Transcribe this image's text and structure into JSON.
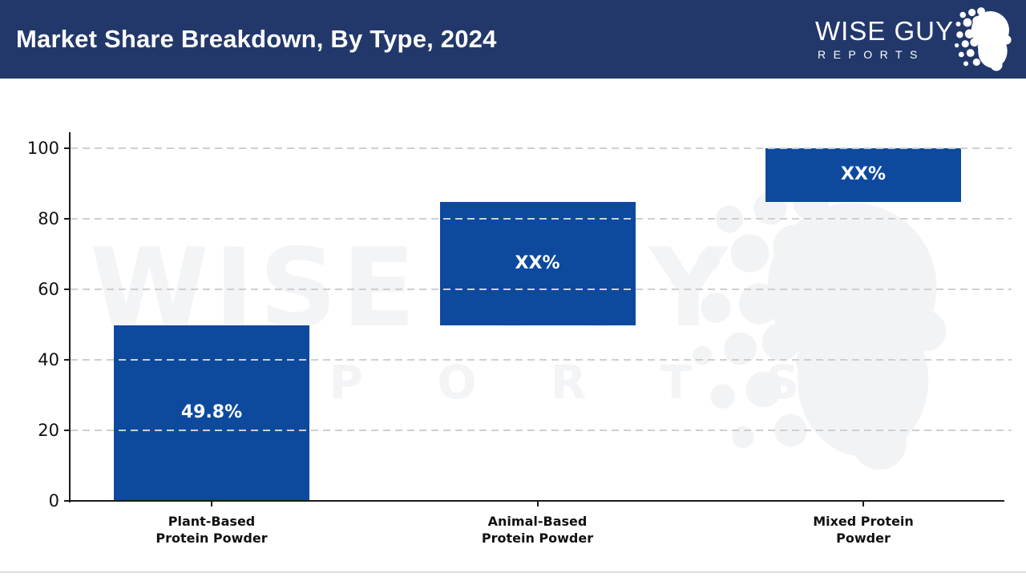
{
  "header": {
    "title": "Market Share Breakdown, By Type, 2024",
    "bg_color": "#22386a",
    "brand": {
      "line1": "WISE GUY",
      "line2": "REPORTS"
    }
  },
  "watermark": {
    "line1": "WISE GUY",
    "line2": "R E P O R T S"
  },
  "chart_data": {
    "type": "bar",
    "subtype": "waterfall",
    "title": "Market Share Breakdown, By Type, 2024",
    "categories": [
      "Plant-Based Protein Powder",
      "Animal-Based Protein Powder",
      "Mixed Protein Powder"
    ],
    "category_lines": [
      [
        "Plant-Based",
        "Protein Powder"
      ],
      [
        "Animal-Based",
        "Protein Powder"
      ],
      [
        "Mixed Protein",
        "Powder"
      ]
    ],
    "bars": [
      {
        "start": 0,
        "end": 49.8,
        "label": "49.8%"
      },
      {
        "start": 49.8,
        "end": 84.8,
        "label": "XX%"
      },
      {
        "start": 84.8,
        "end": 100,
        "label": "XX%"
      }
    ],
    "ylim": [
      0,
      100
    ],
    "yticks": [
      0,
      20,
      40,
      60,
      80,
      100
    ],
    "xlabel": "",
    "ylabel": "",
    "legend": null,
    "grid": {
      "axis": "y",
      "style": "dashed",
      "color": "#cfcfcf"
    },
    "bar_color": "#0d4a9e",
    "bar_label_color": "#ffffff",
    "axis_color": "#1a1a1a"
  }
}
